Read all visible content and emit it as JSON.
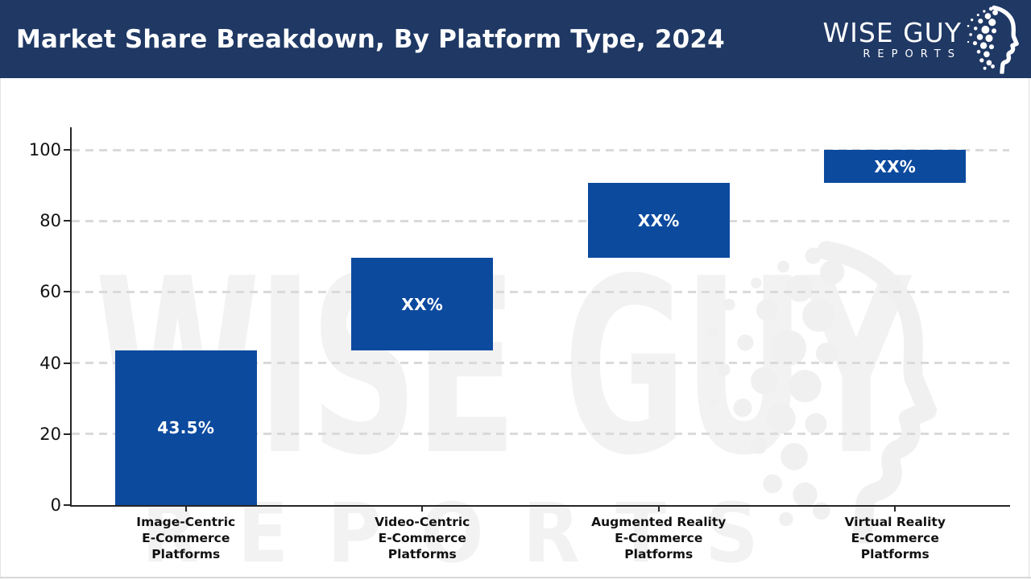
{
  "header": {
    "title": "Market Share Breakdown, By Platform Type, 2024",
    "logo": {
      "line1": "WISE GUY",
      "line2": "REPORTS"
    }
  },
  "watermark": {
    "line1": "WISE GUY",
    "line2": "REPORTS"
  },
  "colors": {
    "header_bg": "#1f3864",
    "bar": "#0c4a9e",
    "bar_label": "#ffffff",
    "grid": "#dadada",
    "axis": "#262626",
    "watermark": "#f2f2f2"
  },
  "chart_data": {
    "type": "bar",
    "subtype": "waterfall",
    "title": "Market Share Breakdown, By Platform Type, 2024",
    "categories": [
      "Image-Centric\nE-Commerce\nPlatforms",
      "Video-Centric\nE-Commerce\nPlatforms",
      "Augmented Reality\nE-Commerce\nPlatforms",
      "Virtual Reality\nE-Commerce\nPlatforms"
    ],
    "segments": [
      {
        "category": "Image-Centric E-Commerce Platforms",
        "start": 0,
        "end": 43.5,
        "label": "43.5%"
      },
      {
        "category": "Video-Centric E-Commerce Platforms",
        "start": 43.5,
        "end": 69.6,
        "label": "XX%"
      },
      {
        "category": "Augmented Reality E-Commerce Platforms",
        "start": 69.6,
        "end": 90.7,
        "label": "XX%"
      },
      {
        "category": "Virtual Reality E-Commerce Platforms",
        "start": 90.7,
        "end": 100,
        "label": "XX%"
      }
    ],
    "yticks": [
      0,
      20,
      40,
      60,
      80,
      100
    ],
    "ylim": [
      0,
      106
    ],
    "xlabel": "",
    "ylabel": "",
    "grid": "horizontal-dashed",
    "legend": "none"
  }
}
